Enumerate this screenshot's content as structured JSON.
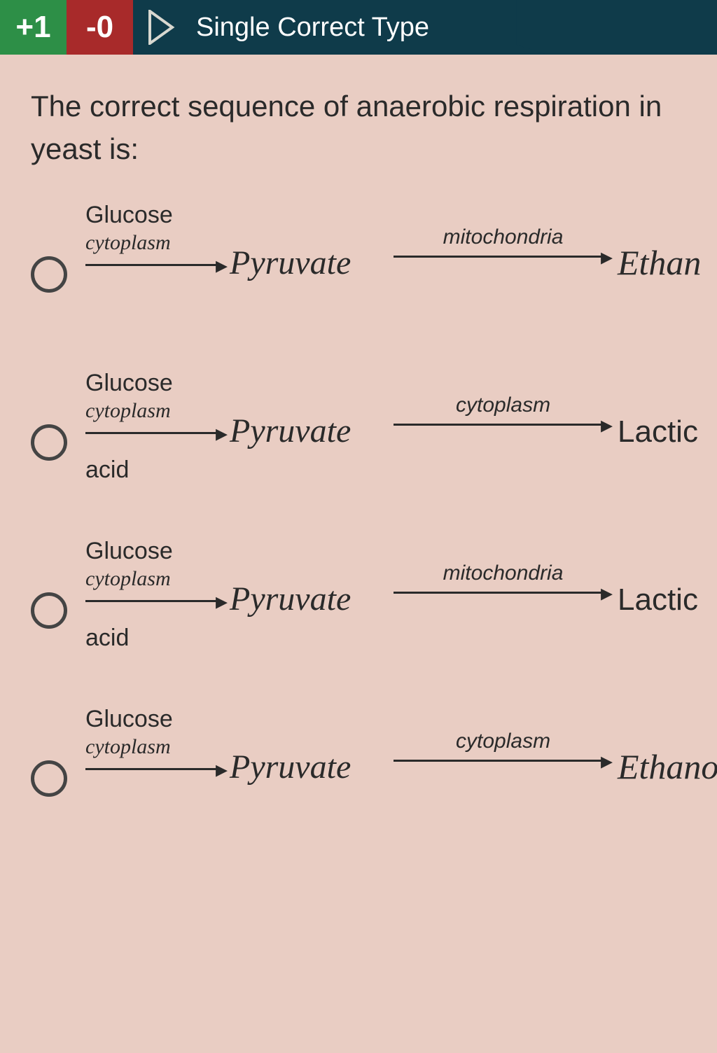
{
  "colors": {
    "header_bg": "#0f3b4a",
    "pos_bg": "#2d8f47",
    "neg_bg": "#a82a2a",
    "body_bg": "#e9cdc3",
    "text_dark": "#2a2a2a",
    "text_header": "#ffffff",
    "radio_border": "#444444",
    "play_outline": "#d8d8d0"
  },
  "header": {
    "score_positive": "+1",
    "score_negative": "-0",
    "question_type": "Single Correct Type"
  },
  "question": "The correct sequence of anaerobic respiration in yeast is:",
  "terms": {
    "glucose": "Glucose",
    "cytoplasm": "cytoplasm",
    "pyruvate": "Pyruvate",
    "mitochondria": "mitochondria",
    "lactic": "Lactic",
    "acid": "acid",
    "ethan": "Ethan",
    "ethanol": "Ethanol"
  },
  "options": [
    {
      "start": "glucose",
      "arrow1_over": "cytoplasm",
      "mid": "pyruvate",
      "arrow2_over": "mitochondria",
      "product": "ethan",
      "product_style": "italic",
      "acid_below": false
    },
    {
      "start": "glucose",
      "arrow1_over": "cytoplasm",
      "mid": "pyruvate",
      "arrow2_over": "cytoplasm",
      "product": "lactic",
      "product_style": "roman",
      "acid_below": true
    },
    {
      "start": "glucose",
      "arrow1_over": "cytoplasm",
      "mid": "pyruvate",
      "arrow2_over": "mitochondria",
      "product": "lactic",
      "product_style": "roman",
      "acid_below": true
    },
    {
      "start": "glucose",
      "arrow1_over": "cytoplasm",
      "mid": "pyruvate",
      "arrow2_over": "cytoplasm",
      "product": "ethanol",
      "product_style": "italic",
      "acid_below": false
    }
  ]
}
